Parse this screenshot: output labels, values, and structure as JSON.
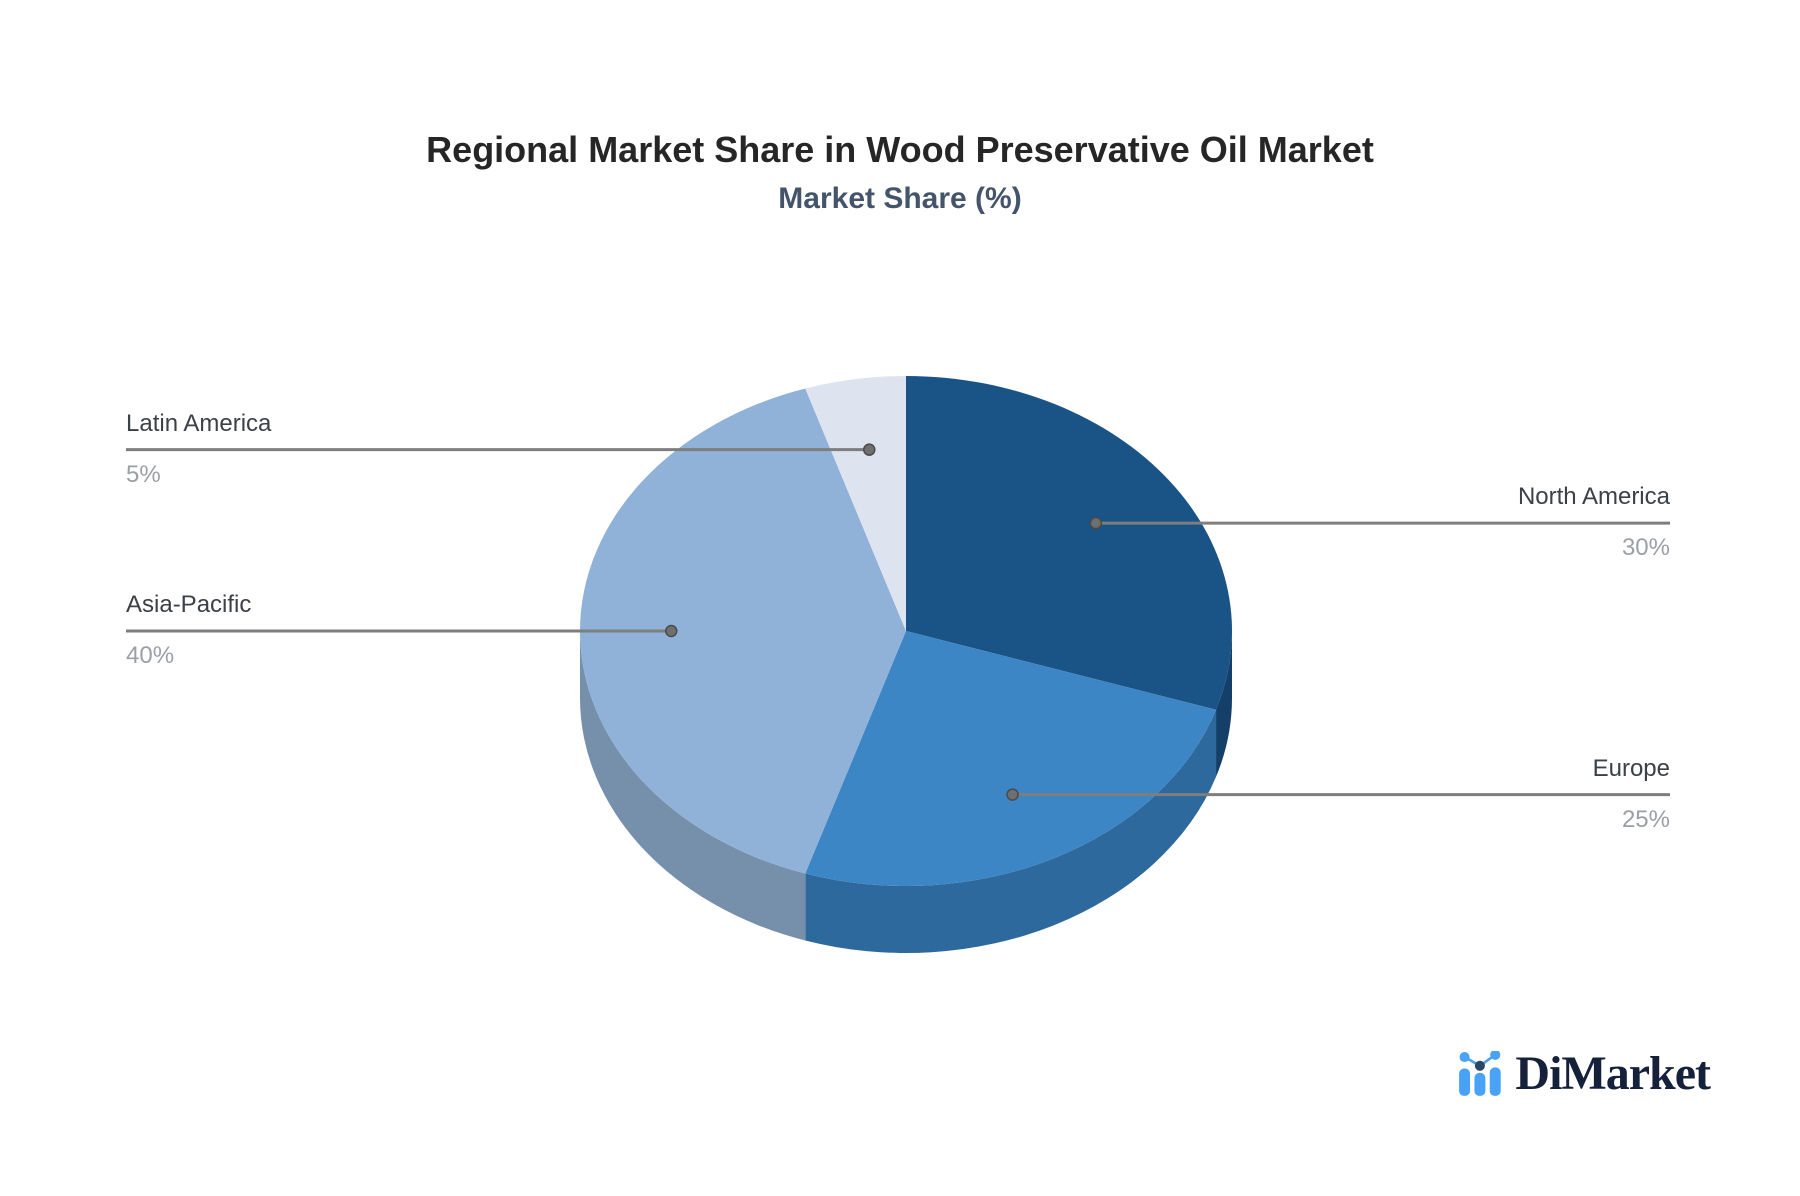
{
  "title": "Regional Market Share in Wood Preservative Oil Market",
  "subtitle": "Market Share (%)",
  "chart_data": {
    "type": "pie",
    "style": "3d",
    "title": "Regional Market Share in Wood Preservative Oil Market",
    "subtitle": "Market Share (%)",
    "unit": "%",
    "start_angle_deg": 0,
    "direction": "clockwise",
    "legend_position": "none",
    "label_style": "leader-lines",
    "slices": [
      {
        "label": "North America",
        "value": 30,
        "display": "30%",
        "color": "#1a5486",
        "side_color": "#133f68",
        "label_side": "right"
      },
      {
        "label": "Europe",
        "value": 25,
        "display": "25%",
        "color": "#3d86c6",
        "side_color": "#2d699c",
        "label_side": "right"
      },
      {
        "label": "Asia-Pacific",
        "value": 40,
        "display": "40%",
        "color": "#90b2d8",
        "side_color": "#7690ac",
        "label_side": "left"
      },
      {
        "label": "Latin America",
        "value": 5,
        "display": "5%",
        "color": "#dde4f0",
        "side_color": "#c3cfe2",
        "label_side": "left"
      }
    ]
  },
  "branding": {
    "logo_text": "DiMarket"
  },
  "colors": {
    "title_text": "#262626",
    "subtitle_text": "#44546a",
    "label_text": "#3b4148",
    "percent_text": "#9aa0a6",
    "leader_line": "#7e7e7e",
    "anchor_dot": "#6f6f6f",
    "logo_text": "#15213a",
    "logo_icon": "#4aa2f7",
    "logo_icon_dark_dot": "#2c4766"
  }
}
